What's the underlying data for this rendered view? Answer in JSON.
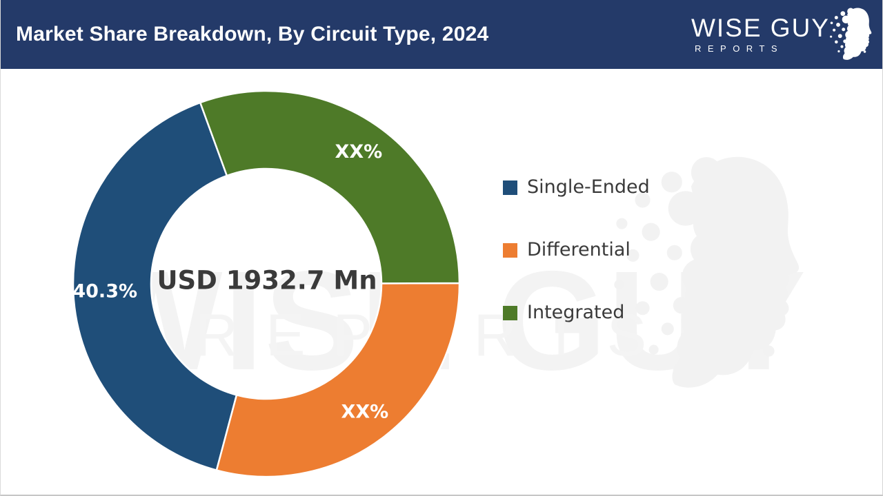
{
  "header": {
    "title": "Market Share Breakdown, By Circuit Type, 2024",
    "logo": {
      "line1": "WISE GUY",
      "line2": "REPORTS"
    }
  },
  "watermark": {
    "line1": "WISE GUY",
    "line2": "REPORTS"
  },
  "chart_data": {
    "type": "pie",
    "subtype": "donut",
    "title": "Market Share Breakdown, By Circuit Type, 2024",
    "center_label": "USD 1932.7 Mn",
    "categories": [
      "Single-Ended",
      "Differential",
      "Integrated"
    ],
    "slices": [
      {
        "label": "Single-Ended",
        "display_value": "40.3%",
        "share_pct_est": 40.3,
        "color": "#1F4E79"
      },
      {
        "label": "Differential",
        "display_value": "XX%",
        "share_pct_est": 29.2,
        "color": "#ED7D31"
      },
      {
        "label": "Integrated",
        "display_value": "XX%",
        "share_pct_est": 30.5,
        "color": "#4E7A28"
      }
    ],
    "start_angle_deg": 110,
    "direction": "counterclockwise",
    "legend_position": "right"
  },
  "colors": {
    "header_bg": "#243A69",
    "text_dark": "#3A3A3A",
    "watermark": "#F3F3F3",
    "slice_label_text": "#FFFFFF"
  }
}
